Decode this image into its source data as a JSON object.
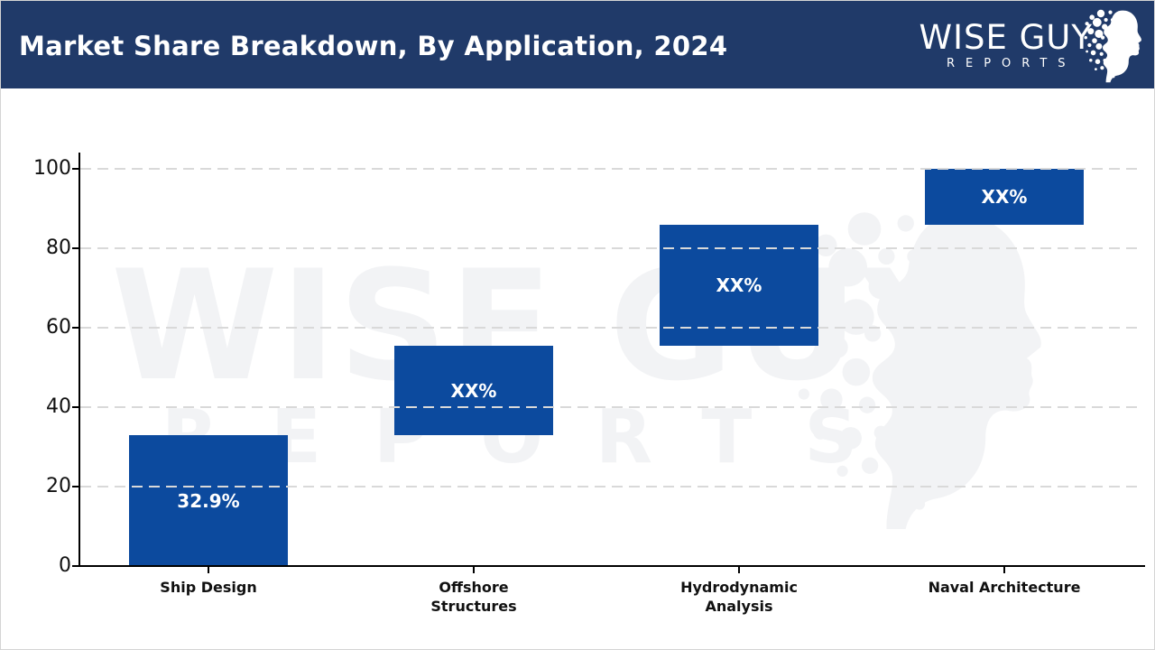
{
  "header": {
    "title": "Market Share Breakdown, By Application, 2024",
    "logo": {
      "line1": "WISE GUY",
      "line2": "REPORTS"
    }
  },
  "watermark": {
    "line1": "WISE GUY",
    "line2": "REPORTS"
  },
  "colors": {
    "header_bg": "#203a69",
    "bar": "#0c4a9e",
    "grid": "#d9d9d9",
    "axis": "#000000",
    "bar_label": "#ffffff",
    "watermark": "#f2f3f5"
  },
  "chart_data": {
    "type": "bar",
    "subtype": "waterfall",
    "title": "Market Share Breakdown, By Application, 2024",
    "categories": [
      "Ship Design",
      "Offshore Structures",
      "Hydrodynamic Analysis",
      "Naval Architecture"
    ],
    "tick_labels": [
      "Ship Design",
      "Offshore\nStructures",
      "Hydrodynamic\nAnalysis",
      "Naval Architecture"
    ],
    "segments": [
      {
        "category": "Ship Design",
        "start": 0,
        "end": 32.9,
        "value": 32.9,
        "label": "32.9%"
      },
      {
        "category": "Offshore Structures",
        "start": 32.9,
        "end": 55.5,
        "value": 22.6,
        "label": "XX%"
      },
      {
        "category": "Hydrodynamic Analysis",
        "start": 55.5,
        "end": 86.0,
        "value": 30.5,
        "label": "XX%"
      },
      {
        "category": "Naval Architecture",
        "start": 86.0,
        "end": 100.0,
        "value": 14.0,
        "label": "XX%"
      }
    ],
    "xlabel": "",
    "ylabel": "",
    "ylim": [
      0,
      100
    ],
    "yticks": [
      0,
      20,
      40,
      60,
      80,
      100
    ],
    "grid": "dashed-horizontal",
    "legend": "none",
    "bar_color": "#0c4a9e",
    "value_suffix": "%"
  }
}
